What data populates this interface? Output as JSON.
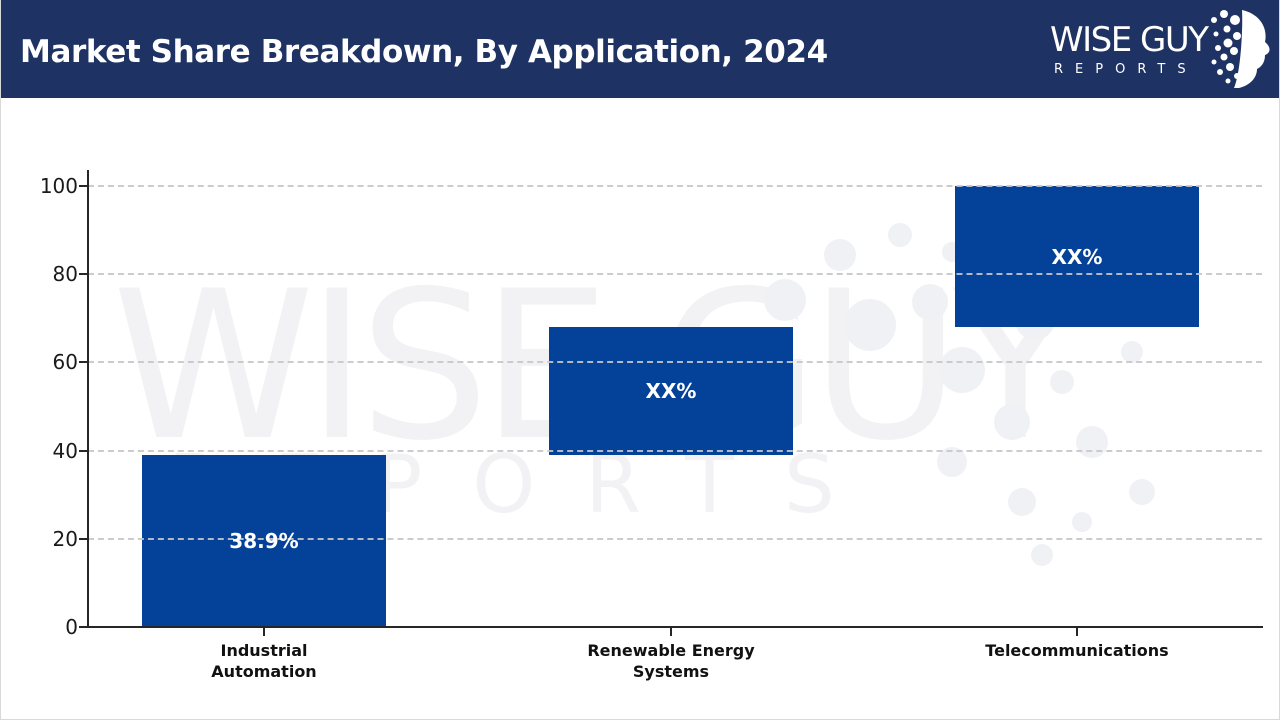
{
  "header": {
    "title": "Market Share Breakdown, By Application, 2024",
    "logo": {
      "main": "WISE GUY",
      "reports": "REPORTS"
    }
  },
  "watermark": {
    "line1": "WISE GUY",
    "line2": "REPORTS"
  },
  "colors": {
    "header_bg": "#1e3263",
    "bar_fill": "#04429a",
    "bar_label": "#ffffff",
    "gridline": "#c6c6c6",
    "axis": "#262626",
    "watermark": "#f2f2f4"
  },
  "chart_data": {
    "type": "bar",
    "subtype": "waterfall-segments",
    "title": "Market Share Breakdown, By Application, 2024",
    "categories": [
      "Industrial\nAutomation",
      "Renewable Energy\nSystems",
      "Telecommunications"
    ],
    "segments": [
      {
        "category": "Industrial Automation",
        "start": 0,
        "end": 38.9,
        "label": "38.9%"
      },
      {
        "category": "Renewable Energy Systems",
        "start": 38.9,
        "end": 68,
        "label": "XX%"
      },
      {
        "category": "Telecommunications",
        "start": 68,
        "end": 100,
        "label": "XX%"
      }
    ],
    "yticks": [
      0,
      20,
      40,
      60,
      80,
      100
    ],
    "ylim": [
      0,
      103
    ],
    "xlabel": "",
    "ylabel": "",
    "grid": "horizontal-dashed-over-bars",
    "legend": "none"
  }
}
